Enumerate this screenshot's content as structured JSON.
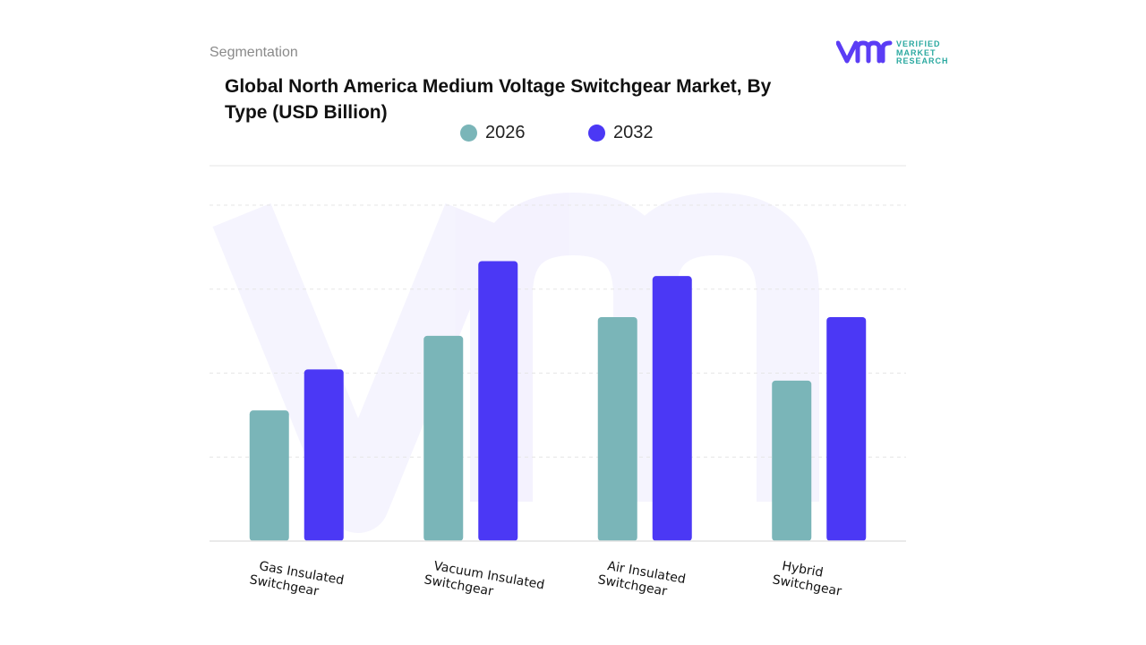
{
  "header": {
    "segment_label": "Segmentation"
  },
  "logo": {
    "mark": "vmr-logo-icon",
    "text_line1": "VERIFIED",
    "text_line2": "MARKET",
    "text_line3": "RESEARCH",
    "brand_color": "#5b3df5",
    "accent_color": "#2aa9a0"
  },
  "chart_data": {
    "type": "bar",
    "title": "Global North America Medium Voltage Switchgear Market, By Type (USD Billion)",
    "categories": [
      "Gas Insulated Switchgear",
      "Vacuum Insulated Switchgear",
      "Air Insulated Switchgear",
      "Hybrid Switchgear"
    ],
    "category_lines": [
      [
        "Gas Insulated",
        "Switchgear"
      ],
      [
        "Vacuum Insulated",
        "Switchgear"
      ],
      [
        "Air Insulated",
        "Switchgear"
      ],
      [
        "Hybrid",
        "Switchgear"
      ]
    ],
    "series": [
      {
        "name": "2026",
        "color": "#7ab5b8",
        "values": [
          1.75,
          2.75,
          3.0,
          2.15
        ]
      },
      {
        "name": "2032",
        "color": "#4b38f5",
        "values": [
          2.3,
          3.75,
          3.55,
          3.0
        ]
      }
    ],
    "xlabel": "",
    "ylabel": "",
    "ylim": [
      0,
      4.5
    ],
    "grid": true,
    "legend_position": "top-center",
    "tick_labels_visible": false
  }
}
